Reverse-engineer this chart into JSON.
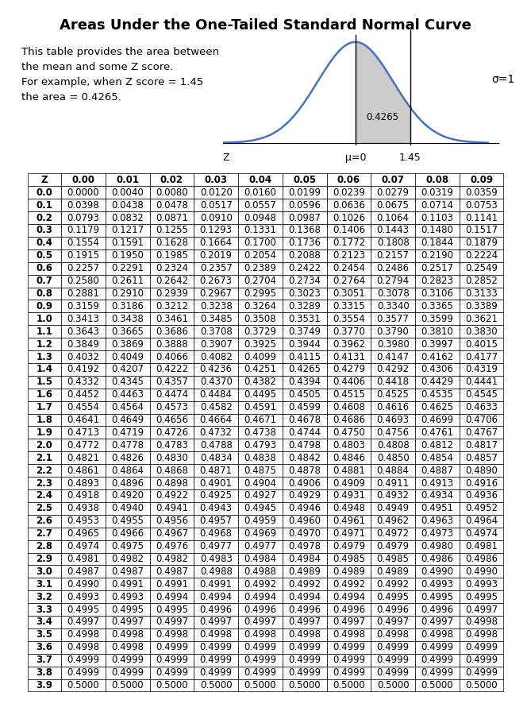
{
  "title": "Areas Under the One-Tailed Standard Normal Curve",
  "description_lines": [
    "This table provides the area between",
    "the mean and some Z score.",
    "For example, when Z score = 1.45",
    "the area = 0.4265."
  ],
  "sigma_label": "σ=1",
  "mu_label": "μ=0",
  "z_label": "Z",
  "z_value_label": "1.45",
  "area_label": "0.4265",
  "col_headers": [
    "Z",
    "0.00",
    "0.01",
    "0.02",
    "0.03",
    "0.04",
    "0.05",
    "0.06",
    "0.07",
    "0.08",
    "0.09"
  ],
  "row_labels": [
    "0.0",
    "0.1",
    "0.2",
    "0.3",
    "0.4",
    "0.5",
    "0.6",
    "0.7",
    "0.8",
    "0.9",
    "1.0",
    "1.1",
    "1.2",
    "1.3",
    "1.4",
    "1.5",
    "1.6",
    "1.7",
    "1.8",
    "1.9",
    "2.0",
    "2.1",
    "2.2",
    "2.3",
    "2.4",
    "2.5",
    "2.6",
    "2.7",
    "2.8",
    "2.9",
    "3.0",
    "3.1",
    "3.2",
    "3.3",
    "3.4",
    "3.5",
    "3.6",
    "3.7",
    "3.8",
    "3.9"
  ],
  "table_data": [
    [
      "0.0000",
      "0.0040",
      "0.0080",
      "0.0120",
      "0.0160",
      "0.0199",
      "0.0239",
      "0.0279",
      "0.0319",
      "0.0359"
    ],
    [
      "0.0398",
      "0.0438",
      "0.0478",
      "0.0517",
      "0.0557",
      "0.0596",
      "0.0636",
      "0.0675",
      "0.0714",
      "0.0753"
    ],
    [
      "0.0793",
      "0.0832",
      "0.0871",
      "0.0910",
      "0.0948",
      "0.0987",
      "0.1026",
      "0.1064",
      "0.1103",
      "0.1141"
    ],
    [
      "0.1179",
      "0.1217",
      "0.1255",
      "0.1293",
      "0.1331",
      "0.1368",
      "0.1406",
      "0.1443",
      "0.1480",
      "0.1517"
    ],
    [
      "0.1554",
      "0.1591",
      "0.1628",
      "0.1664",
      "0.1700",
      "0.1736",
      "0.1772",
      "0.1808",
      "0.1844",
      "0.1879"
    ],
    [
      "0.1915",
      "0.1950",
      "0.1985",
      "0.2019",
      "0.2054",
      "0.2088",
      "0.2123",
      "0.2157",
      "0.2190",
      "0.2224"
    ],
    [
      "0.2257",
      "0.2291",
      "0.2324",
      "0.2357",
      "0.2389",
      "0.2422",
      "0.2454",
      "0.2486",
      "0.2517",
      "0.2549"
    ],
    [
      "0.2580",
      "0.2611",
      "0.2642",
      "0.2673",
      "0.2704",
      "0.2734",
      "0.2764",
      "0.2794",
      "0.2823",
      "0.2852"
    ],
    [
      "0.2881",
      "0.2910",
      "0.2939",
      "0.2967",
      "0.2995",
      "0.3023",
      "0.3051",
      "0.3078",
      "0.3106",
      "0.3133"
    ],
    [
      "0.3159",
      "0.3186",
      "0.3212",
      "0.3238",
      "0.3264",
      "0.3289",
      "0.3315",
      "0.3340",
      "0.3365",
      "0.3389"
    ],
    [
      "0.3413",
      "0.3438",
      "0.3461",
      "0.3485",
      "0.3508",
      "0.3531",
      "0.3554",
      "0.3577",
      "0.3599",
      "0.3621"
    ],
    [
      "0.3643",
      "0.3665",
      "0.3686",
      "0.3708",
      "0.3729",
      "0.3749",
      "0.3770",
      "0.3790",
      "0.3810",
      "0.3830"
    ],
    [
      "0.3849",
      "0.3869",
      "0.3888",
      "0.3907",
      "0.3925",
      "0.3944",
      "0.3962",
      "0.3980",
      "0.3997",
      "0.4015"
    ],
    [
      "0.4032",
      "0.4049",
      "0.4066",
      "0.4082",
      "0.4099",
      "0.4115",
      "0.4131",
      "0.4147",
      "0.4162",
      "0.4177"
    ],
    [
      "0.4192",
      "0.4207",
      "0.4222",
      "0.4236",
      "0.4251",
      "0.4265",
      "0.4279",
      "0.4292",
      "0.4306",
      "0.4319"
    ],
    [
      "0.4332",
      "0.4345",
      "0.4357",
      "0.4370",
      "0.4382",
      "0.4394",
      "0.4406",
      "0.4418",
      "0.4429",
      "0.4441"
    ],
    [
      "0.4452",
      "0.4463",
      "0.4474",
      "0.4484",
      "0.4495",
      "0.4505",
      "0.4515",
      "0.4525",
      "0.4535",
      "0.4545"
    ],
    [
      "0.4554",
      "0.4564",
      "0.4573",
      "0.4582",
      "0.4591",
      "0.4599",
      "0.4608",
      "0.4616",
      "0.4625",
      "0.4633"
    ],
    [
      "0.4641",
      "0.4649",
      "0.4656",
      "0.4664",
      "0.4671",
      "0.4678",
      "0.4686",
      "0.4693",
      "0.4699",
      "0.4706"
    ],
    [
      "0.4713",
      "0.4719",
      "0.4726",
      "0.4732",
      "0.4738",
      "0.4744",
      "0.4750",
      "0.4756",
      "0.4761",
      "0.4767"
    ],
    [
      "0.4772",
      "0.4778",
      "0.4783",
      "0.4788",
      "0.4793",
      "0.4798",
      "0.4803",
      "0.4808",
      "0.4812",
      "0.4817"
    ],
    [
      "0.4821",
      "0.4826",
      "0.4830",
      "0.4834",
      "0.4838",
      "0.4842",
      "0.4846",
      "0.4850",
      "0.4854",
      "0.4857"
    ],
    [
      "0.4861",
      "0.4864",
      "0.4868",
      "0.4871",
      "0.4875",
      "0.4878",
      "0.4881",
      "0.4884",
      "0.4887",
      "0.4890"
    ],
    [
      "0.4893",
      "0.4896",
      "0.4898",
      "0.4901",
      "0.4904",
      "0.4906",
      "0.4909",
      "0.4911",
      "0.4913",
      "0.4916"
    ],
    [
      "0.4918",
      "0.4920",
      "0.4922",
      "0.4925",
      "0.4927",
      "0.4929",
      "0.4931",
      "0.4932",
      "0.4934",
      "0.4936"
    ],
    [
      "0.4938",
      "0.4940",
      "0.4941",
      "0.4943",
      "0.4945",
      "0.4946",
      "0.4948",
      "0.4949",
      "0.4951",
      "0.4952"
    ],
    [
      "0.4953",
      "0.4955",
      "0.4956",
      "0.4957",
      "0.4959",
      "0.4960",
      "0.4961",
      "0.4962",
      "0.4963",
      "0.4964"
    ],
    [
      "0.4965",
      "0.4966",
      "0.4967",
      "0.4968",
      "0.4969",
      "0.4970",
      "0.4971",
      "0.4972",
      "0.4973",
      "0.4974"
    ],
    [
      "0.4974",
      "0.4975",
      "0.4976",
      "0.4977",
      "0.4977",
      "0.4978",
      "0.4979",
      "0.4979",
      "0.4980",
      "0.4981"
    ],
    [
      "0.4981",
      "0.4982",
      "0.4982",
      "0.4983",
      "0.4984",
      "0.4984",
      "0.4985",
      "0.4985",
      "0.4986",
      "0.4986"
    ],
    [
      "0.4987",
      "0.4987",
      "0.4987",
      "0.4988",
      "0.4988",
      "0.4989",
      "0.4989",
      "0.4989",
      "0.4990",
      "0.4990"
    ],
    [
      "0.4990",
      "0.4991",
      "0.4991",
      "0.4991",
      "0.4992",
      "0.4992",
      "0.4992",
      "0.4992",
      "0.4993",
      "0.4993"
    ],
    [
      "0.4993",
      "0.4993",
      "0.4994",
      "0.4994",
      "0.4994",
      "0.4994",
      "0.4994",
      "0.4995",
      "0.4995",
      "0.4995"
    ],
    [
      "0.4995",
      "0.4995",
      "0.4995",
      "0.4996",
      "0.4996",
      "0.4996",
      "0.4996",
      "0.4996",
      "0.4996",
      "0.4997"
    ],
    [
      "0.4997",
      "0.4997",
      "0.4997",
      "0.4997",
      "0.4997",
      "0.4997",
      "0.4997",
      "0.4997",
      "0.4997",
      "0.4998"
    ],
    [
      "0.4998",
      "0.4998",
      "0.4998",
      "0.4998",
      "0.4998",
      "0.4998",
      "0.4998",
      "0.4998",
      "0.4998",
      "0.4998"
    ],
    [
      "0.4998",
      "0.4998",
      "0.4999",
      "0.4999",
      "0.4999",
      "0.4999",
      "0.4999",
      "0.4999",
      "0.4999",
      "0.4999"
    ],
    [
      "0.4999",
      "0.4999",
      "0.4999",
      "0.4999",
      "0.4999",
      "0.4999",
      "0.4999",
      "0.4999",
      "0.4999",
      "0.4999"
    ],
    [
      "0.4999",
      "0.4999",
      "0.4999",
      "0.4999",
      "0.4999",
      "0.4999",
      "0.4999",
      "0.4999",
      "0.4999",
      "0.4999"
    ],
    [
      "0.5000",
      "0.5000",
      "0.5000",
      "0.5000",
      "0.5000",
      "0.5000",
      "0.5000",
      "0.5000",
      "0.5000",
      "0.5000"
    ]
  ],
  "bg_color": "#ffffff",
  "header_bg": "#ffffff",
  "row_label_bold": true,
  "col_header_bold": true,
  "curve_color": "#4472C4",
  "shade_color": "#C0C0C0",
  "title_fontsize": 13,
  "desc_fontsize": 9.5,
  "table_fontsize": 8.5
}
